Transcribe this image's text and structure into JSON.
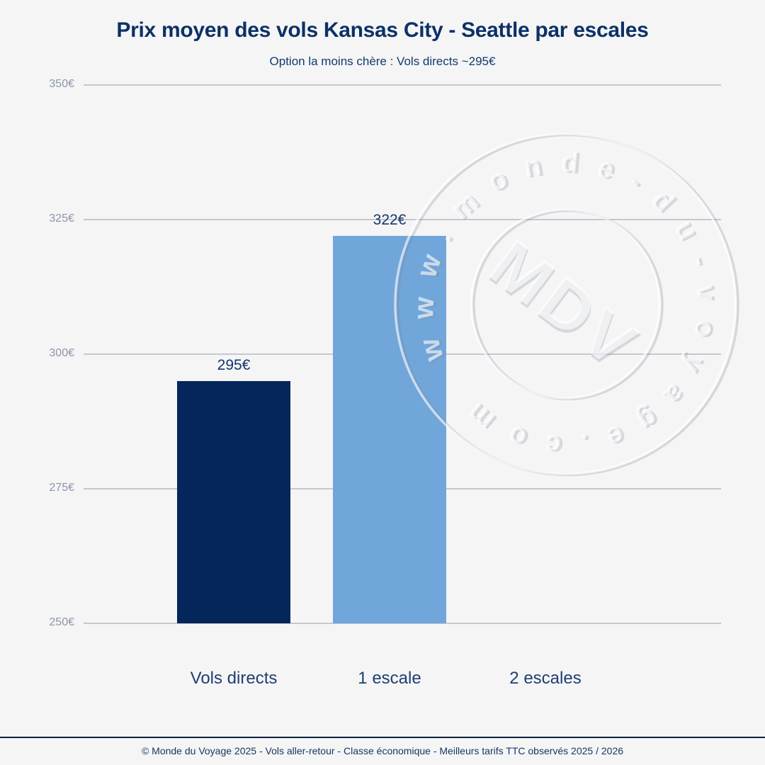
{
  "title": "Prix moyen des vols Kansas City - Seattle par escales",
  "subtitle": "Option la moins chère : Vols directs ~295€",
  "watermark": {
    "ring_text": "www.monde-du-voyage.com",
    "center_text": "MDV"
  },
  "footer": {
    "text": "© Monde du Voyage 2025 - Vols aller-retour - Classe économique - Meilleurs tarifs TTC observés 2025 / 2026"
  },
  "colors": {
    "background": "#f5f5f6",
    "title": "#0c3166",
    "subtitle": "#123a6d",
    "grid": "#c5c8cf",
    "tick_label": "#8d95a9",
    "value_label": "#14356b",
    "category_label": "#1e3f70",
    "bar_direct": "#04265a",
    "bar_one_stop": "#71a6da",
    "footer_line": "#0d2440",
    "footer_text": "#14355f"
  },
  "chart_data": {
    "type": "bar",
    "title": "Prix moyen des vols Kansas City - Seattle par escales",
    "subtitle": "Option la moins chère : Vols directs ~295€",
    "categories": [
      "Vols directs",
      "1 escale",
      "2 escales"
    ],
    "values": [
      295,
      322,
      null
    ],
    "value_labels": [
      "295€",
      "322€",
      ""
    ],
    "bar_color_keys": [
      "bar_direct",
      "bar_one_stop",
      null
    ],
    "unit": "€",
    "y_ticks": [
      350,
      325,
      300,
      275,
      250
    ],
    "y_tick_labels": [
      "350€",
      "325€",
      "300€",
      "275€",
      "250€"
    ],
    "ylim": [
      250,
      350
    ],
    "grid": true,
    "legend": false
  }
}
